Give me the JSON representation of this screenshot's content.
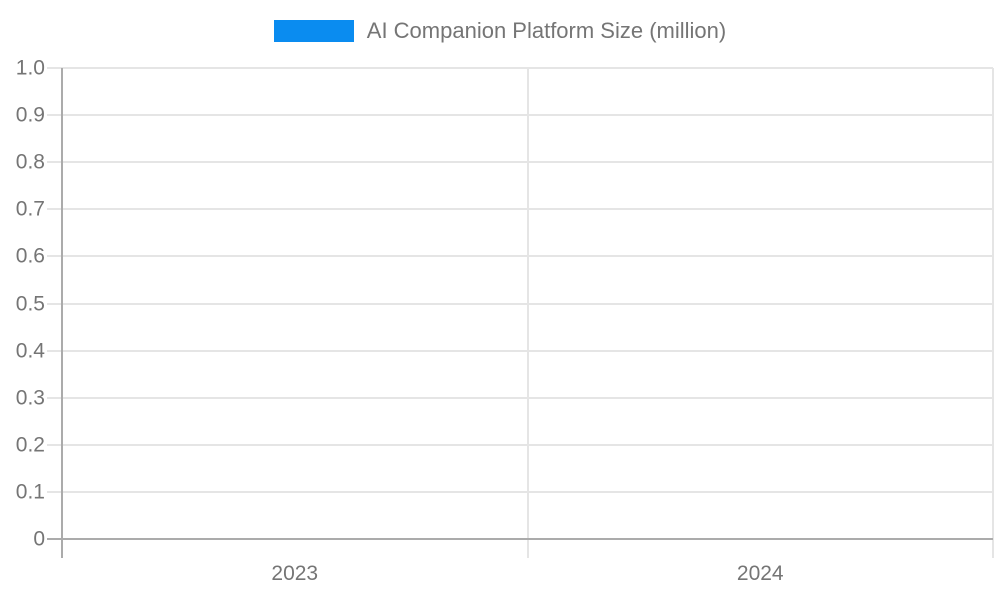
{
  "legend": {
    "label": "AI Companion Platform Size (million)",
    "swatch_color": "#0a8cf0"
  },
  "chart_data": {
    "type": "bar",
    "title": "AI Companion Platform Size (million)",
    "categories": [
      "2023",
      "2024"
    ],
    "series": [
      {
        "name": "AI Companion Platform Size (million)",
        "values": [
          0,
          0
        ]
      }
    ],
    "xlabel": "",
    "ylabel": "",
    "ylim": [
      0,
      1.0
    ],
    "ytick_step": 0.1,
    "ytick_labels": [
      "0",
      "0.1",
      "0.2",
      "0.3",
      "0.4",
      "0.5",
      "0.6",
      "0.7",
      "0.8",
      "0.9",
      "1.0"
    ],
    "grid": true,
    "legend_position": "top",
    "colors": {
      "bar": "#0a8cf0",
      "grid_line": "#e5e5e5",
      "axis_line": "#ababab",
      "text": "#757575"
    }
  }
}
